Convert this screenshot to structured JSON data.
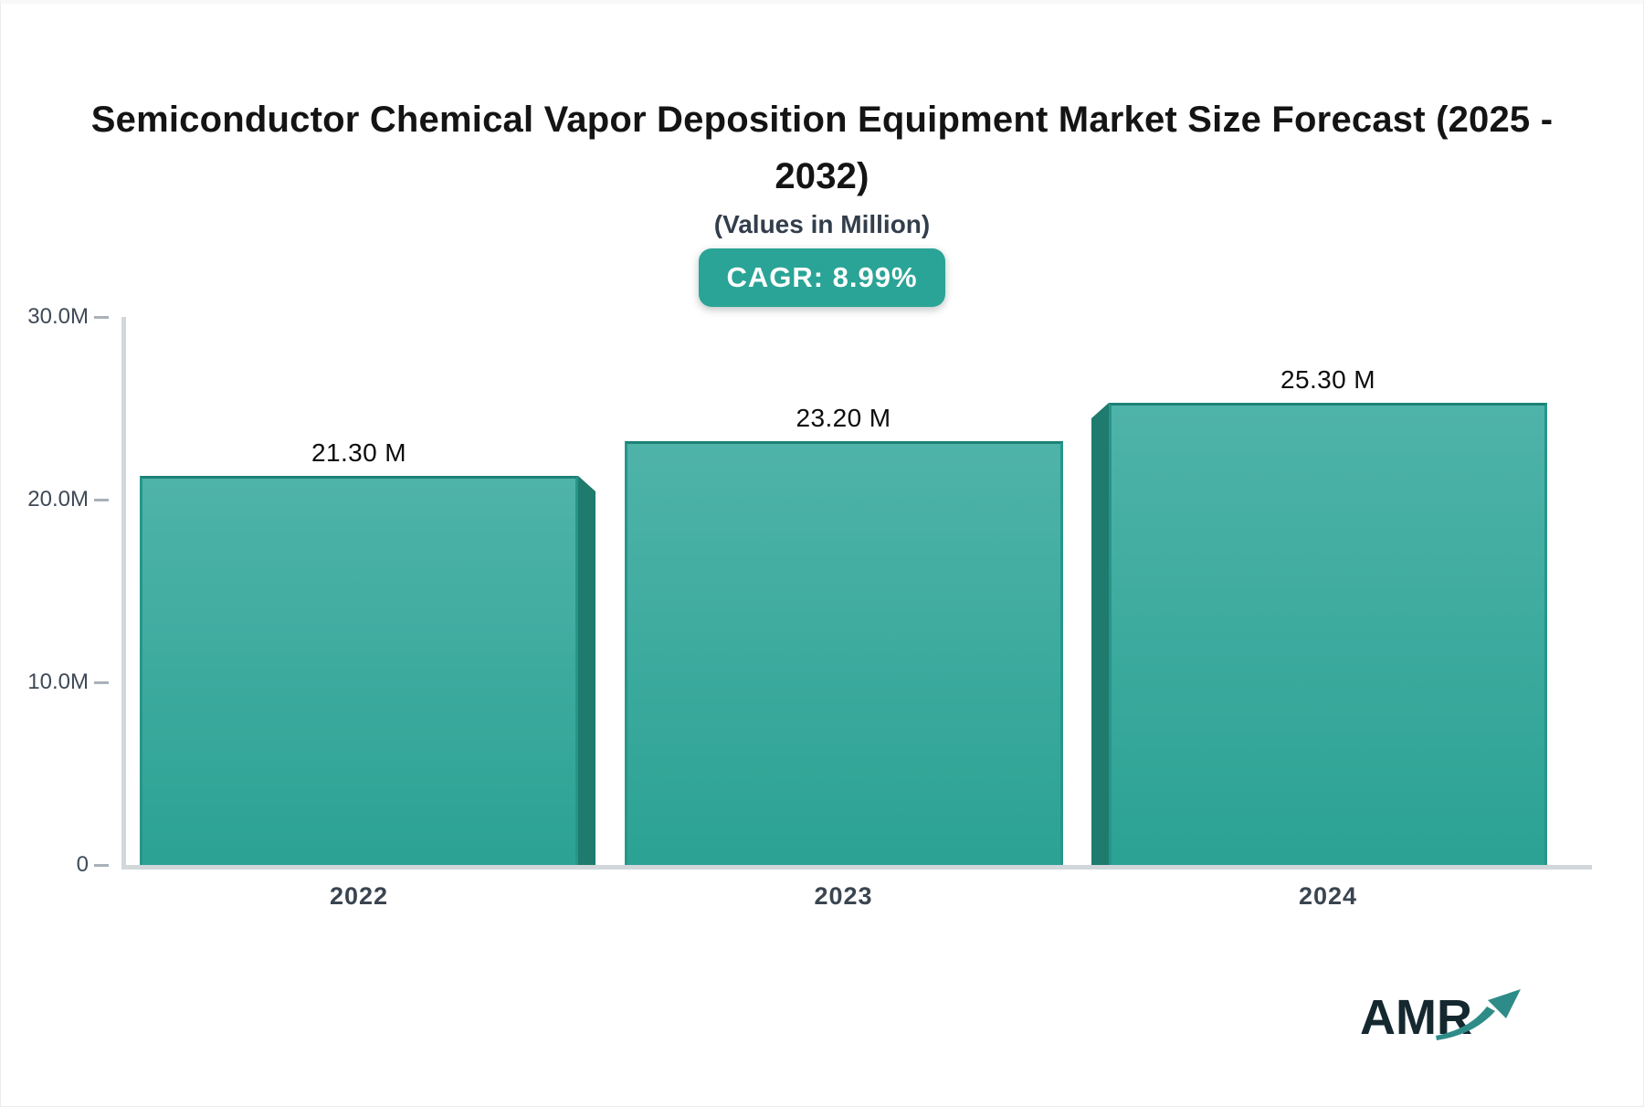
{
  "header": {
    "title_line1": "Semiconductor Chemical Vapor Deposition Equipment Market Size Forecast (2025 -",
    "title_line2": "2032)",
    "subtitle": "(Values in Million)",
    "cagr_badge": "CAGR: 8.99%"
  },
  "chart_data": {
    "type": "bar",
    "title": "Semiconductor Chemical Vapor Deposition Equipment Market Size Forecast (2025 - 2032)",
    "subtitle": "(Values in Million)",
    "cagr_percent": 8.99,
    "unit": "Million",
    "categories": [
      "2022",
      "2023",
      "2024"
    ],
    "values": [
      21.3,
      23.2,
      25.3
    ],
    "value_labels": [
      "21.30 M",
      "23.20 M",
      "25.30 M"
    ],
    "ylim": [
      0,
      30
    ],
    "yticks": [
      {
        "value": 30,
        "label": "30.0M"
      },
      {
        "value": 20,
        "label": "20.0M"
      },
      {
        "value": 10,
        "label": "10.0M"
      },
      {
        "value": 0,
        "label": "0"
      }
    ],
    "grid": false,
    "legend": false,
    "bevels": [
      "right",
      "none",
      "left"
    ]
  },
  "colors": {
    "accent_teal": "#2aa496",
    "bar_gradient_top": "#4fb3a9",
    "bar_gradient_bottom": "#2ba294",
    "bar_side_shadow": "#1f7b6e",
    "bar_edge": "#1d8276",
    "axis_gray": "#d2d7db",
    "tick_text": "#3e4a57",
    "title_text": "#141414",
    "logo_navy": "#152830",
    "logo_arrow_teal": "#2e8c88"
  },
  "footer": {
    "logo_text": "AMR",
    "logo_icon": "growth-arrow-icon"
  }
}
